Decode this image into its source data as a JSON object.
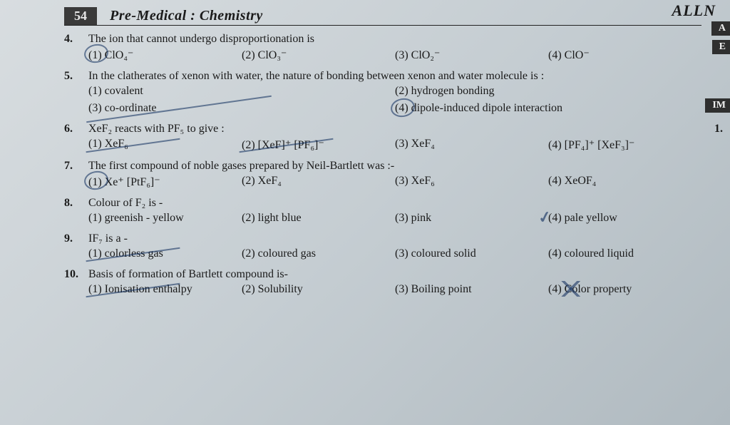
{
  "header": {
    "page_number": "54",
    "title": "Pre-Medical : Chemistry",
    "brand": "ALLN"
  },
  "edge_tabs": {
    "a": "A",
    "e": "E",
    "im": "IM"
  },
  "side_number": "1.",
  "questions": [
    {
      "num": "4.",
      "text": "The ion that cannot undergo disproportionation is",
      "opts": [
        "(1) ClO₄⁻",
        "(2) ClO₃⁻",
        "(3) ClO₂⁻",
        "(4) ClO⁻"
      ]
    },
    {
      "num": "5.",
      "text": "In the clatherates of xenon with water, the nature of bonding between xenon and water molecule is :",
      "opts": [
        "(1) covalent",
        "(2) hydrogen bonding",
        "(3) co-ordinate",
        "(4) dipole-induced dipole interaction"
      ]
    },
    {
      "num": "6.",
      "text": "XeF₂ reacts with PF₅ to give :",
      "opts": [
        "(1) XeF₆",
        "(2) [XeF]⁺ [PF₆]⁻",
        "(3) XeF₄",
        "(4) [PF₄]⁺ [XeF₃]⁻"
      ]
    },
    {
      "num": "7.",
      "text": "The first compound of noble gases prepared by Neil-Bartlett was :-",
      "opts": [
        "(1) Xe⁺ [PtF₆]⁻",
        "(2) XeF₄",
        "(3) XeF₆",
        "(4) XeOF₄"
      ]
    },
    {
      "num": "8.",
      "text": "Colour of F₂ is -",
      "opts": [
        "(1) greenish - yellow",
        "(2) light blue",
        "(3) pink",
        "(4) pale yellow"
      ]
    },
    {
      "num": "9.",
      "text": "IF₇ is a -",
      "opts": [
        "(1) colorless gas",
        "(2) coloured gas",
        "(3) coloured solid",
        "(4) coloured liquid"
      ]
    },
    {
      "num": "10.",
      "text": "Basis of formation of Bartlett compound is-",
      "opts": [
        "(1) Ionisation enthalpy",
        "(2) Solubility",
        "(3) Boiling point",
        "(4) Color property"
      ]
    }
  ]
}
